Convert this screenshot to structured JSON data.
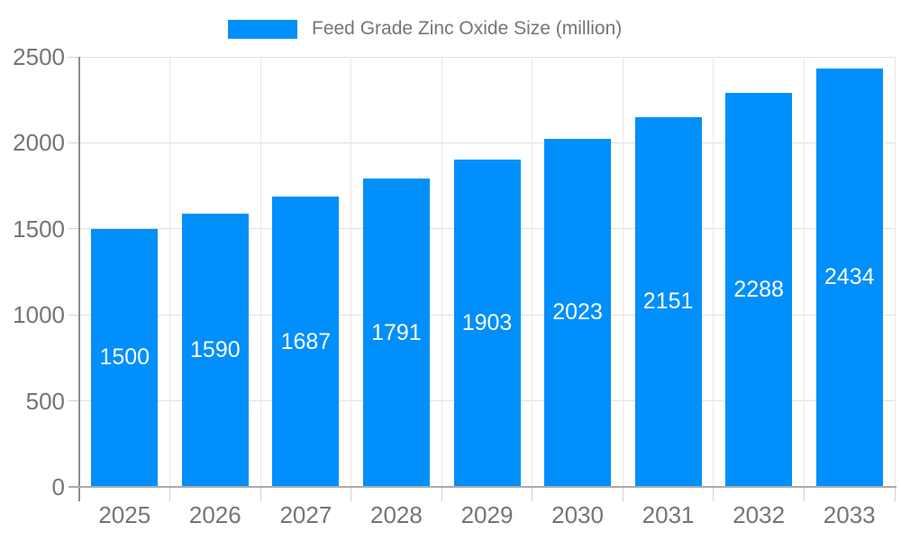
{
  "legend": {
    "label": "Feed Grade Zinc Oxide Size (million)"
  },
  "colors": {
    "bar": "#008FFB",
    "grid_horizontal": "#e0e0e0",
    "grid_vertical": "#e8e8e8",
    "y_axis_line": "#8c8c8c",
    "x_axis_line": "#ababab",
    "tick": "#d2d2d2",
    "axis_text": "#757575",
    "value_label_text": "#ffffff"
  },
  "chart_data": {
    "type": "bar",
    "title": "",
    "xlabel": "",
    "ylabel": "",
    "categories": [
      "2025",
      "2026",
      "2027",
      "2028",
      "2029",
      "2030",
      "2031",
      "2032",
      "2033"
    ],
    "values": [
      1500,
      1590,
      1687,
      1791,
      1903,
      2023,
      2151,
      2288,
      2434
    ],
    "series_name": "Feed Grade Zinc Oxide Size (million)",
    "ylim": [
      0,
      2500
    ],
    "yticks": [
      0,
      500,
      1000,
      1500,
      2000,
      2500
    ],
    "grid": true,
    "legend_position": "top",
    "value_labels": "inside-center"
  }
}
